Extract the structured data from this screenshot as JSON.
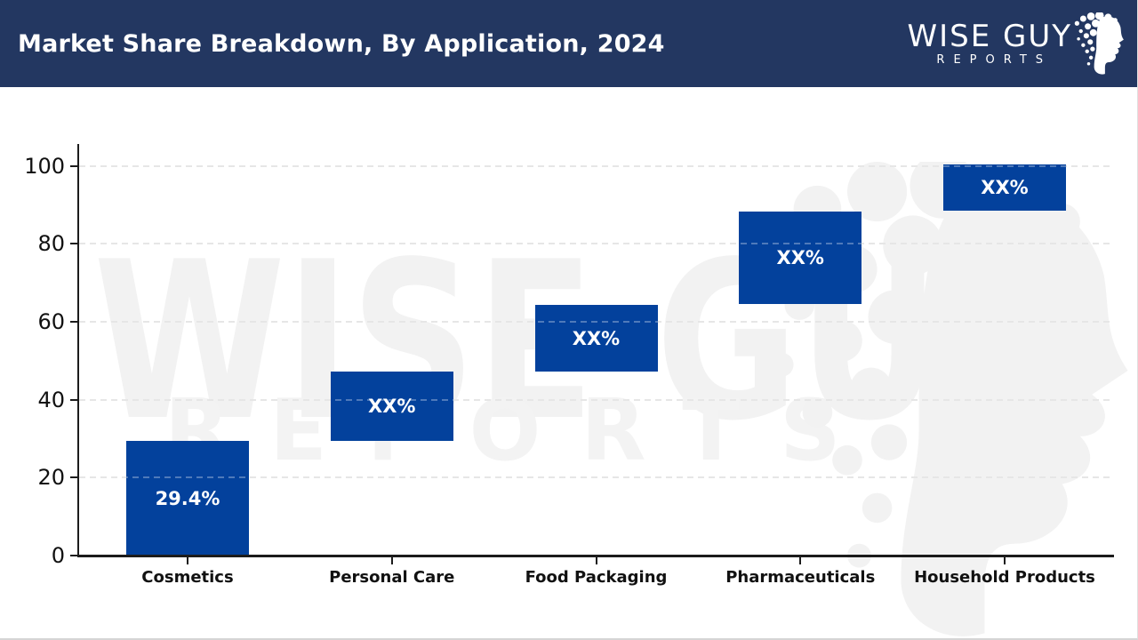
{
  "header": {
    "title": "Market Share Breakdown, By Application, 2024",
    "bg_color": "#233761",
    "logo": {
      "line1": "WISE GUY",
      "line2": "REPORTS"
    }
  },
  "watermark": {
    "line1": "WISE GUY",
    "line2": "REPORTS"
  },
  "chart_data": {
    "type": "bar",
    "subtype": "waterfall",
    "title": "Market Share Breakdown, By Application, 2024",
    "categories": [
      "Cosmetics",
      "Personal Care",
      "Food Packaging",
      "Pharmaceuticals",
      "Household Products"
    ],
    "segments": [
      {
        "category": "Cosmetics",
        "start": 0,
        "end": 29.4,
        "label": "29.4%"
      },
      {
        "category": "Personal Care",
        "start": 29.4,
        "end": 47.1,
        "label": "XX%"
      },
      {
        "category": "Food Packaging",
        "start": 47.1,
        "end": 64.4,
        "label": "XX%"
      },
      {
        "category": "Pharmaceuticals",
        "start": 64.6,
        "end": 88.3,
        "label": "XX%"
      },
      {
        "category": "Household Products",
        "start": 88.4,
        "end": 100.3,
        "label": "XX%"
      }
    ],
    "yticks": [
      0,
      20,
      40,
      60,
      80,
      100
    ],
    "ylim": [
      0,
      105
    ],
    "xlabel": "",
    "ylabel": "",
    "legend": "none",
    "grid": {
      "horizontal": true,
      "style": "dashed",
      "color": "#dcdcdc"
    },
    "bar_color": "#03419c",
    "value_label_color": "#ffffff",
    "axis_color": "#1c1c1c"
  }
}
